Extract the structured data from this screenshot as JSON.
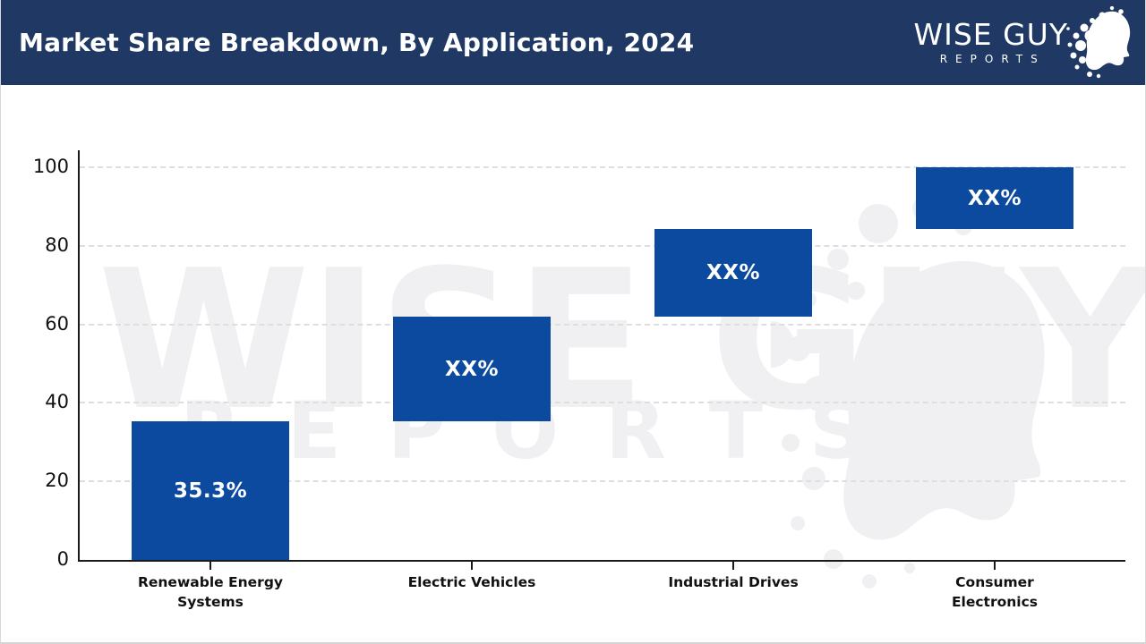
{
  "header": {
    "title": "Market Share Breakdown, By Application, 2024",
    "logo": {
      "line1": "WISE GUY",
      "line2": "REPORTS"
    }
  },
  "watermark": {
    "line1": "WISE GUY",
    "line2": "REPORTS"
  },
  "colors": {
    "header_bg": "#1f3864",
    "bar_fill": "#0c4aa0",
    "bar_label": "#ffffff",
    "grid": "#dedede",
    "axis": "#1a1a1a",
    "watermark": "#f0f0f3"
  },
  "chart_data": {
    "type": "bar",
    "subtype": "floating-waterfall",
    "title": "Market Share Breakdown, By Application, 2024",
    "xlabel": "",
    "ylabel": "",
    "categories": [
      "Renewable Energy\nSystems",
      "Electric Vehicles",
      "Industrial Drives",
      "Consumer\nElectronics"
    ],
    "bars": [
      {
        "category": "Renewable Energy Systems",
        "start": 0,
        "end": 35.3,
        "label": "35.3%"
      },
      {
        "category": "Electric Vehicles",
        "start": 35.3,
        "end": 61.9,
        "label": "XX%"
      },
      {
        "category": "Industrial Drives",
        "start": 61.9,
        "end": 84.2,
        "label": "XX%"
      },
      {
        "category": "Consumer Electronics",
        "start": 84.2,
        "end": 100,
        "label": "XX%"
      }
    ],
    "ylim": [
      0,
      104
    ],
    "yticks": [
      0,
      20,
      40,
      60,
      80,
      100
    ],
    "grid": "horizontal-dashed",
    "legend": "none"
  }
}
